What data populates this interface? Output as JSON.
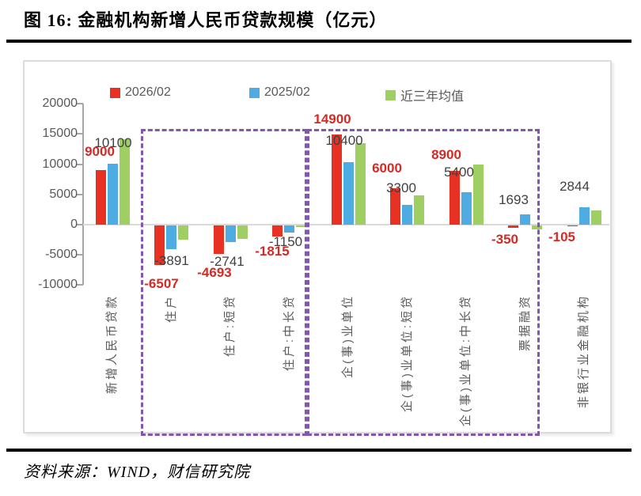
{
  "figure": {
    "title": "图 16:  金融机构新增人民币贷款规模（亿元）",
    "source": "资料来源：WIND，财信研究院"
  },
  "chart_data": {
    "type": "bar",
    "title": "金融机构新增人民币贷款规模（亿元）",
    "unit": "亿元",
    "categories": [
      "新增人民币贷款",
      "住户",
      "住户:短贷",
      "住户:中长贷",
      "企(事)业单位",
      "企(事)业单位:短贷",
      "企(事)业单位:中长贷",
      "票据融资",
      "非银行业金融机构"
    ],
    "series": [
      {
        "name": "2026/02",
        "color": "#e73123",
        "values": [
          9000,
          -6507,
          -4693,
          -1815,
          14900,
          6000,
          8900,
          -350,
          -105
        ],
        "data_labels_shown": true,
        "estimated": false
      },
      {
        "name": "2025/02",
        "color": "#4face3",
        "values": [
          10100,
          -3891,
          -2741,
          -1150,
          10400,
          3300,
          5400,
          1693,
          2844
        ],
        "data_labels_shown": true,
        "estimated": false
      },
      {
        "name": "近三年均值",
        "color": "#9fce63",
        "values": [
          14200,
          -2300,
          -2200,
          -300,
          13500,
          4800,
          9900,
          -600,
          2300
        ],
        "data_labels_shown": false,
        "estimated": true
      }
    ],
    "ylim": [
      -10000,
      20000
    ],
    "yticks": [
      20000,
      15000,
      10000,
      5000,
      0,
      -5000,
      -10000
    ],
    "grid": false,
    "legend_position": "top-inside",
    "highlight_boxes": [
      {
        "covers": [
          "住户",
          "住户:短贷",
          "住户:中长贷"
        ],
        "style": "dashed"
      },
      {
        "covers": [
          "企(事)业单位",
          "企(事)业单位:短贷",
          "企(事)业单位:中长贷",
          "票据融资"
        ],
        "style": "dashed"
      }
    ],
    "colors": {
      "highlight_box": "#8456b0",
      "red_label": "#d22b25",
      "dark_label": "#404040",
      "axis": "#a6a6a6",
      "zero_line": "#d9d9d9",
      "tick_label": "#595959"
    }
  }
}
